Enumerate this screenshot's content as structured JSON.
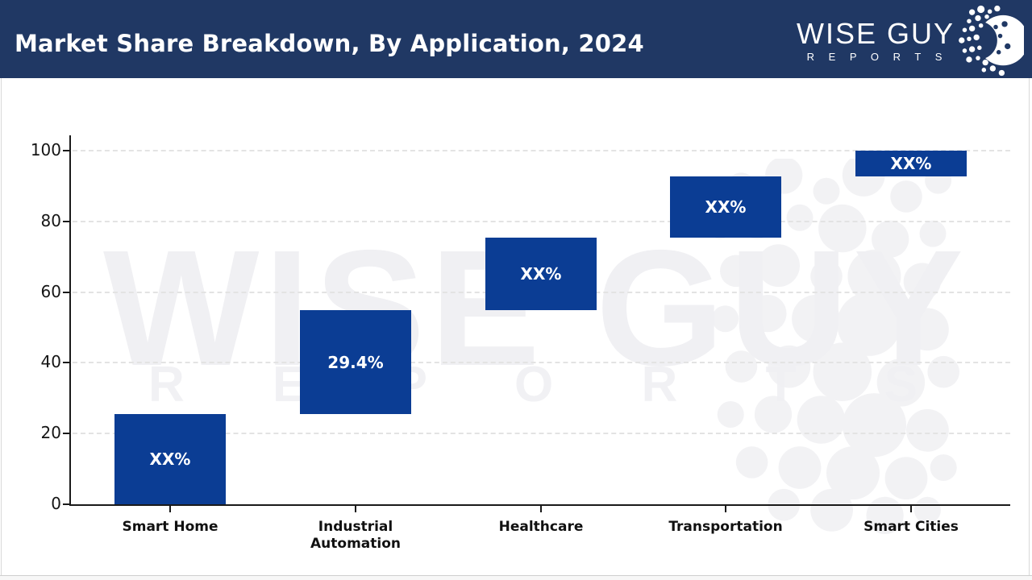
{
  "header": {
    "title": "Market Share Breakdown, By Application, 2024",
    "bg_color": "#203864",
    "logo": {
      "line1": "WISE GUY",
      "line2": "R E P O R T S"
    }
  },
  "watermark": {
    "line1": "WISE GUY",
    "line2": "R E P O R T S"
  },
  "chart_data": {
    "type": "bar",
    "subtype": "waterfall",
    "title": "Market Share Breakdown, By Application, 2024",
    "xlabel": "",
    "ylabel": "",
    "ylim": [
      0,
      104
    ],
    "yticks": [
      0,
      20,
      40,
      60,
      80,
      100
    ],
    "grid": "horizontal dashed",
    "legend": "none",
    "bar_color": "#0b3d94",
    "bar_label_color": "#ffffff",
    "categories": [
      "Smart Home",
      "Industrial Automation",
      "Healthcare",
      "Transportation",
      "Smart Cities"
    ],
    "segments": [
      {
        "category": "Smart Home",
        "start": 0,
        "end": 25.5,
        "value": 25.5,
        "label": "XX%"
      },
      {
        "category": "Industrial Automation",
        "start": 25.5,
        "end": 54.9,
        "value": 29.4,
        "label": "29.4%"
      },
      {
        "category": "Healthcare",
        "start": 54.9,
        "end": 75.5,
        "value": 20.6,
        "label": "XX%"
      },
      {
        "category": "Transportation",
        "start": 75.5,
        "end": 92.6,
        "value": 17.1,
        "label": "XX%"
      },
      {
        "category": "Smart Cities",
        "start": 92.6,
        "end": 100,
        "value": 7.4,
        "label": "XX%"
      }
    ]
  }
}
